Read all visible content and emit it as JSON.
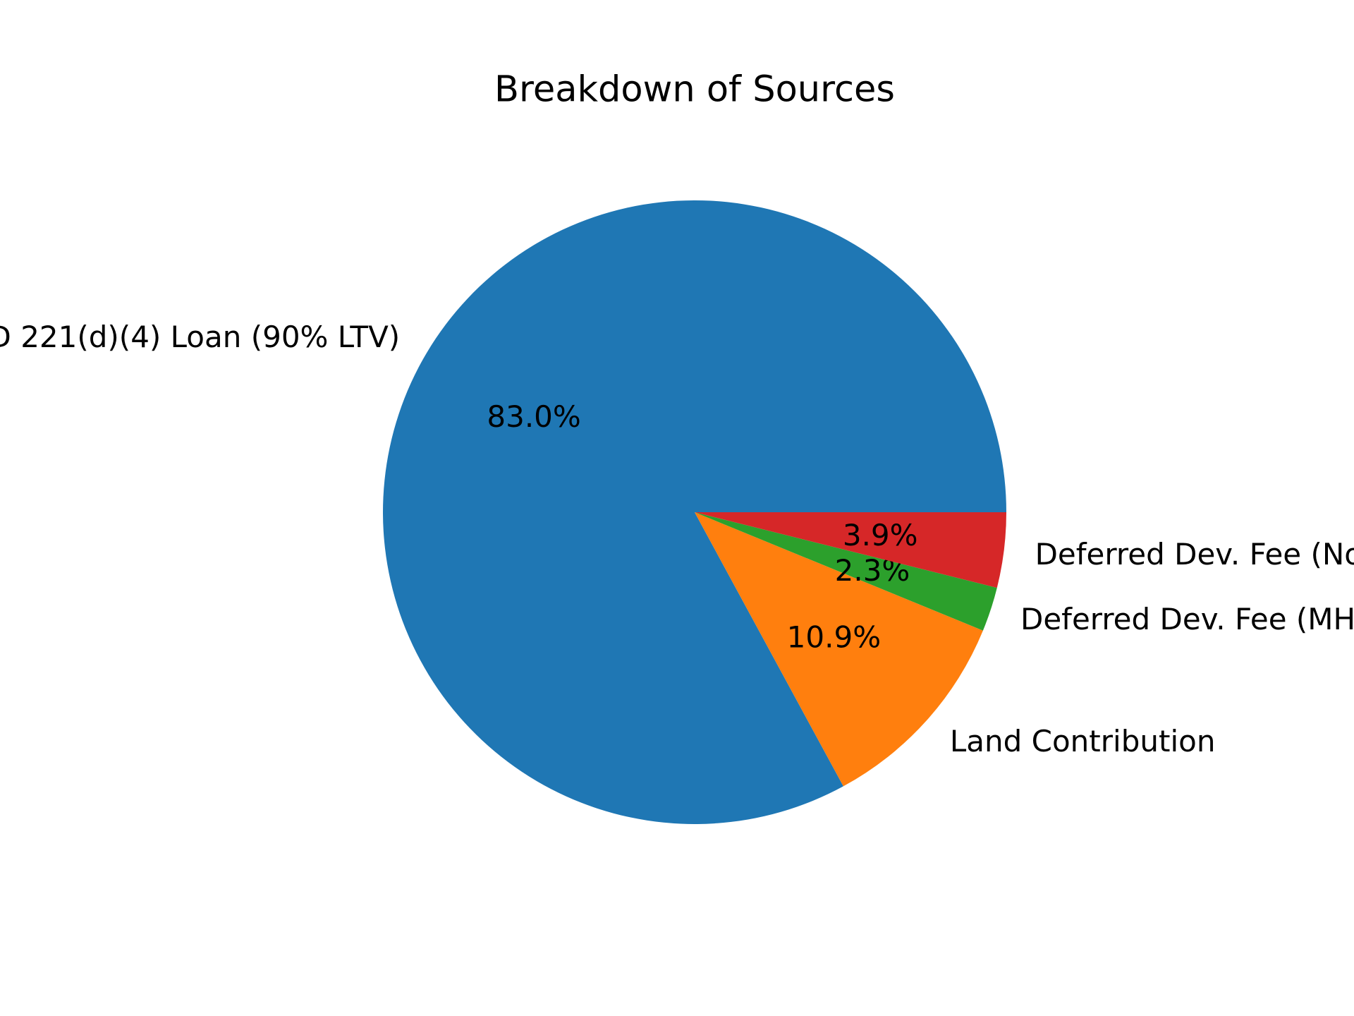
{
  "chart_data": {
    "type": "pie",
    "title": "Breakdown of Sources",
    "slices": [
      {
        "label": "D 221(d)(4) Loan (90% LTV)",
        "value": 83.0,
        "pct_label": "83.0%",
        "color": "#1f77b4"
      },
      {
        "label": "Land Contribution",
        "value": 10.9,
        "pct_label": "10.9%",
        "color": "#ff7f0e"
      },
      {
        "label": "Deferred Dev. Fee (MH",
        "value": 2.3,
        "pct_label": "2.3%",
        "color": "#2ca02c"
      },
      {
        "label": "Deferred Dev. Fee (No",
        "value": 3.9,
        "pct_label": "3.9%",
        "color": "#d62728"
      }
    ],
    "start_angle": 0,
    "direction": "counterclockwise",
    "pct_distance": 0.6,
    "label_distance": 1.1,
    "legend_position": "none",
    "grid": "off",
    "background_color": "#ffffff",
    "text_color": "#000000"
  }
}
